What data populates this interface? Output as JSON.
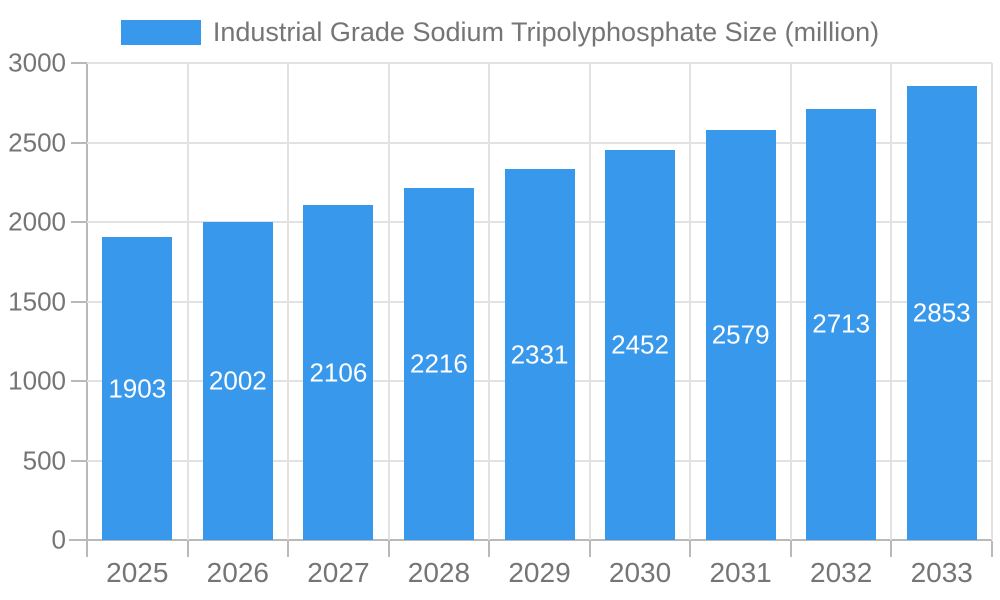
{
  "legend": {
    "label": "Industrial Grade Sodium Tripolyphosphate Size (million)"
  },
  "colors": {
    "bar": "#3899ec",
    "axis_text": "#757575",
    "bar_value_text": "#ffffff",
    "axis_line": "#b9b9b9",
    "gridline": "#e2e2e2",
    "background": "#ffffff"
  },
  "chart_data": {
    "type": "bar",
    "title": "Industrial Grade Sodium Tripolyphosphate Size (million)",
    "categories": [
      "2025",
      "2026",
      "2027",
      "2028",
      "2029",
      "2030",
      "2031",
      "2032",
      "2033"
    ],
    "values": [
      1903,
      2002,
      2106,
      2216,
      2331,
      2452,
      2579,
      2713,
      2853
    ],
    "series": [
      {
        "name": "Industrial Grade Sodium Tripolyphosphate Size (million)",
        "values": [
          1903,
          2002,
          2106,
          2216,
          2331,
          2452,
          2579,
          2713,
          2853
        ]
      }
    ],
    "xlabel": "",
    "ylabel": "",
    "ylim": [
      0,
      3000
    ],
    "ytick_step": 500,
    "ytick_labels": [
      "0",
      "500",
      "1000",
      "1500",
      "2000",
      "2500",
      "3000"
    ],
    "grid": true,
    "legend_position": "top-center",
    "value_labels": "inside-center"
  }
}
